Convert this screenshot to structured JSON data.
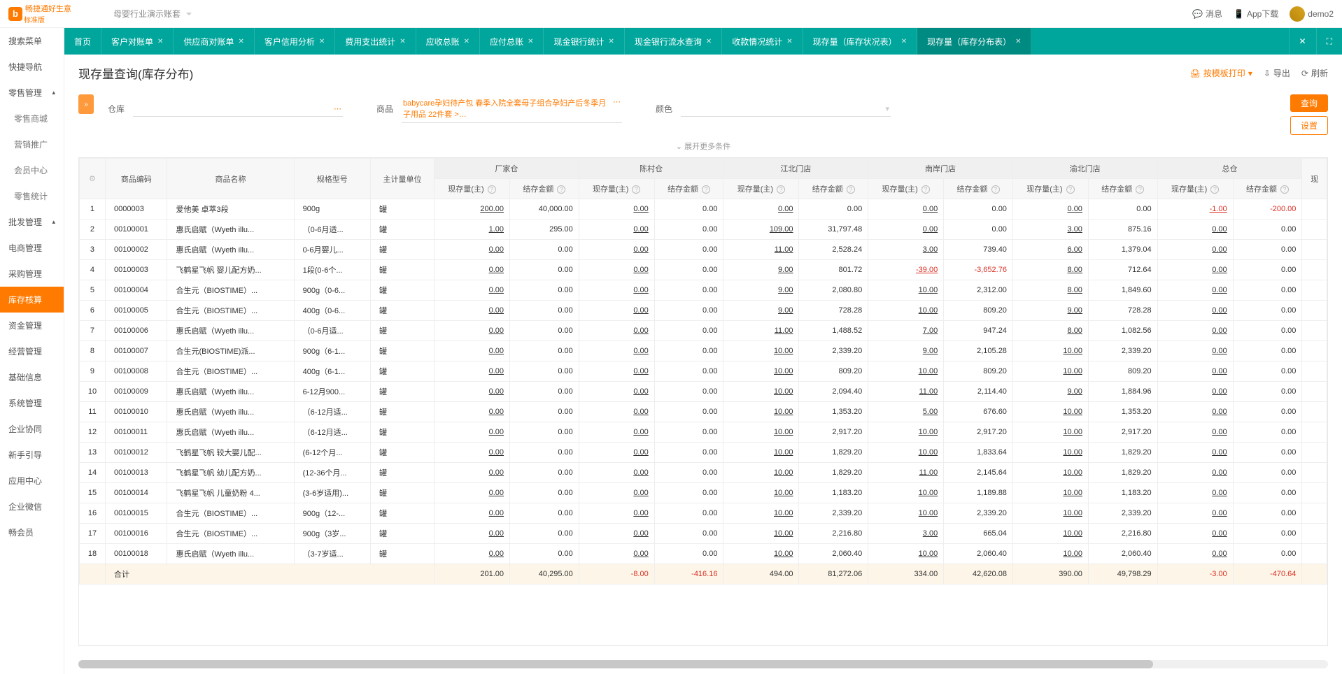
{
  "header": {
    "logo_text": "畅捷通好生意",
    "logo_sub": "标准版",
    "org_dropdown": "母婴行业演示账套",
    "links": {
      "message": "消息",
      "app": "App下载",
      "user": "demo2"
    }
  },
  "sidebar": [
    {
      "label": "搜索菜单",
      "type": "item"
    },
    {
      "label": "快捷导航",
      "type": "item"
    },
    {
      "label": "零售管理",
      "type": "section",
      "expanded": true
    },
    {
      "label": "零售商城",
      "type": "sub"
    },
    {
      "label": "营销推广",
      "type": "sub"
    },
    {
      "label": "会员中心",
      "type": "sub"
    },
    {
      "label": "零售统计",
      "type": "sub"
    },
    {
      "label": "批发管理",
      "type": "section",
      "expanded": true
    },
    {
      "label": "电商管理",
      "type": "item"
    },
    {
      "label": "采购管理",
      "type": "item"
    },
    {
      "label": "库存核算",
      "type": "item",
      "active": true
    },
    {
      "label": "资金管理",
      "type": "item"
    },
    {
      "label": "经营管理",
      "type": "item"
    },
    {
      "label": "基础信息",
      "type": "item"
    },
    {
      "label": "系统管理",
      "type": "item"
    },
    {
      "label": "企业协同",
      "type": "item"
    },
    {
      "label": "新手引导",
      "type": "item"
    },
    {
      "label": "应用中心",
      "type": "item"
    },
    {
      "label": "企业微信",
      "type": "item"
    },
    {
      "label": "畅会员",
      "type": "item"
    }
  ],
  "tabs": {
    "items": [
      {
        "label": "首页",
        "closable": false
      },
      {
        "label": "客户对账单",
        "closable": true
      },
      {
        "label": "供应商对账单",
        "closable": true
      },
      {
        "label": "客户信用分析",
        "closable": true
      },
      {
        "label": "费用支出统计",
        "closable": true
      },
      {
        "label": "应收总账",
        "closable": true
      },
      {
        "label": "应付总账",
        "closable": true
      },
      {
        "label": "现金银行统计",
        "closable": true
      },
      {
        "label": "现金银行流水查询",
        "closable": true
      },
      {
        "label": "收款情况统计",
        "closable": true
      },
      {
        "label": "现存量（库存状况表）",
        "closable": true
      },
      {
        "label": "现存量（库存分布表）",
        "closable": true,
        "active": true
      }
    ]
  },
  "page": {
    "title": "现存量查询(库存分布)",
    "actions": {
      "print": "按模板打印",
      "export": "导出",
      "refresh": "刷新"
    },
    "filters": {
      "warehouse_label": "仓库",
      "warehouse_value": "",
      "product_label": "商品",
      "product_value": "babycare孕妇待产包 春季入院全套母子组合孕妇产后冬季月子用品 22件套 >…",
      "color_label": "颜色",
      "color_value": "",
      "query_btn": "查询",
      "settings_btn": "设置"
    },
    "expand_more": "展开更多条件"
  },
  "table": {
    "fixed_headers": [
      "商品编码",
      "商品名称",
      "规格型号",
      "主计量单位"
    ],
    "group_headers": [
      "厂家仓",
      "陈村仓",
      "江北门店",
      "南岸门店",
      "渝北门店",
      "总仓"
    ],
    "sub_headers": [
      "现存量(主)",
      "结存金额"
    ],
    "colors": {
      "header_bg": "#f7f7f7",
      "group_bg": "#f0f0f0",
      "border": "#eee",
      "neg": "#d93025",
      "total_bg": "#fdf6e8",
      "link": "#333"
    },
    "rows": [
      {
        "n": 1,
        "code": "0000003",
        "name": "爱他美 卓萃3段",
        "spec": "900g",
        "unit": "罐",
        "cells": [
          [
            "200.00",
            "40,000.00"
          ],
          [
            "0.00",
            "0.00"
          ],
          [
            "0.00",
            "0.00"
          ],
          [
            "0.00",
            "0.00"
          ],
          [
            "0.00",
            "0.00"
          ],
          [
            "-1.00",
            "-200.00",
            true
          ]
        ]
      },
      {
        "n": 2,
        "code": "00100001",
        "name": "惠氏启赋（Wyeth illu...",
        "spec": "（0-6月适...",
        "unit": "罐",
        "cells": [
          [
            "1.00",
            "295.00"
          ],
          [
            "0.00",
            "0.00"
          ],
          [
            "109.00",
            "31,797.48"
          ],
          [
            "0.00",
            "0.00"
          ],
          [
            "3.00",
            "875.16"
          ],
          [
            "0.00",
            "0.00"
          ]
        ]
      },
      {
        "n": 3,
        "code": "00100002",
        "name": "惠氏启赋（Wyeth illu...",
        "spec": "0-6月婴儿...",
        "unit": "罐",
        "cells": [
          [
            "0.00",
            "0.00"
          ],
          [
            "0.00",
            "0.00"
          ],
          [
            "11.00",
            "2,528.24"
          ],
          [
            "3.00",
            "739.40"
          ],
          [
            "6.00",
            "1,379.04"
          ],
          [
            "0.00",
            "0.00"
          ]
        ]
      },
      {
        "n": 4,
        "code": "00100003",
        "name": "飞鹤星飞帆 婴儿配方奶...",
        "spec": "1段(0-6个...",
        "unit": "罐",
        "cells": [
          [
            "0.00",
            "0.00"
          ],
          [
            "0.00",
            "0.00"
          ],
          [
            "9.00",
            "801.72"
          ],
          [
            "-39.00",
            "-3,652.76",
            true
          ],
          [
            "8.00",
            "712.64"
          ],
          [
            "0.00",
            "0.00"
          ]
        ]
      },
      {
        "n": 5,
        "code": "00100004",
        "name": "合生元（BIOSTIME）...",
        "spec": "900g（0-6...",
        "unit": "罐",
        "cells": [
          [
            "0.00",
            "0.00"
          ],
          [
            "0.00",
            "0.00"
          ],
          [
            "9.00",
            "2,080.80"
          ],
          [
            "10.00",
            "2,312.00"
          ],
          [
            "8.00",
            "1,849.60"
          ],
          [
            "0.00",
            "0.00"
          ]
        ]
      },
      {
        "n": 6,
        "code": "00100005",
        "name": "合生元（BIOSTIME）...",
        "spec": "400g（0-6...",
        "unit": "罐",
        "cells": [
          [
            "0.00",
            "0.00"
          ],
          [
            "0.00",
            "0.00"
          ],
          [
            "9.00",
            "728.28"
          ],
          [
            "10.00",
            "809.20"
          ],
          [
            "9.00",
            "728.28"
          ],
          [
            "0.00",
            "0.00"
          ]
        ]
      },
      {
        "n": 7,
        "code": "00100006",
        "name": "惠氏启赋（Wyeth illu...",
        "spec": "（0-6月适...",
        "unit": "罐",
        "cells": [
          [
            "0.00",
            "0.00"
          ],
          [
            "0.00",
            "0.00"
          ],
          [
            "11.00",
            "1,488.52"
          ],
          [
            "7.00",
            "947.24"
          ],
          [
            "8.00",
            "1,082.56"
          ],
          [
            "0.00",
            "0.00"
          ]
        ]
      },
      {
        "n": 8,
        "code": "00100007",
        "name": "合生元(BIOSTIME)派...",
        "spec": "900g（6-1...",
        "unit": "罐",
        "cells": [
          [
            "0.00",
            "0.00"
          ],
          [
            "0.00",
            "0.00"
          ],
          [
            "10.00",
            "2,339.20"
          ],
          [
            "9.00",
            "2,105.28"
          ],
          [
            "10.00",
            "2,339.20"
          ],
          [
            "0.00",
            "0.00"
          ]
        ]
      },
      {
        "n": 9,
        "code": "00100008",
        "name": "合生元（BIOSTIME）...",
        "spec": "400g（6-1...",
        "unit": "罐",
        "cells": [
          [
            "0.00",
            "0.00"
          ],
          [
            "0.00",
            "0.00"
          ],
          [
            "10.00",
            "809.20"
          ],
          [
            "10.00",
            "809.20"
          ],
          [
            "10.00",
            "809.20"
          ],
          [
            "0.00",
            "0.00"
          ]
        ]
      },
      {
        "n": 10,
        "code": "00100009",
        "name": "惠氏启赋（Wyeth illu...",
        "spec": "6-12月900...",
        "unit": "罐",
        "cells": [
          [
            "0.00",
            "0.00"
          ],
          [
            "0.00",
            "0.00"
          ],
          [
            "10.00",
            "2,094.40"
          ],
          [
            "11.00",
            "2,114.40"
          ],
          [
            "9.00",
            "1,884.96"
          ],
          [
            "0.00",
            "0.00"
          ]
        ]
      },
      {
        "n": 11,
        "code": "00100010",
        "name": "惠氏启赋（Wyeth illu...",
        "spec": "（6-12月适...",
        "unit": "罐",
        "cells": [
          [
            "0.00",
            "0.00"
          ],
          [
            "0.00",
            "0.00"
          ],
          [
            "10.00",
            "1,353.20"
          ],
          [
            "5.00",
            "676.60"
          ],
          [
            "10.00",
            "1,353.20"
          ],
          [
            "0.00",
            "0.00"
          ]
        ]
      },
      {
        "n": 12,
        "code": "00100011",
        "name": "惠氏启赋（Wyeth illu...",
        "spec": "（6-12月适...",
        "unit": "罐",
        "cells": [
          [
            "0.00",
            "0.00"
          ],
          [
            "0.00",
            "0.00"
          ],
          [
            "10.00",
            "2,917.20"
          ],
          [
            "10.00",
            "2,917.20"
          ],
          [
            "10.00",
            "2,917.20"
          ],
          [
            "0.00",
            "0.00"
          ]
        ]
      },
      {
        "n": 13,
        "code": "00100012",
        "name": "飞鹤星飞帆 较大婴儿配...",
        "spec": "(6-12个月...",
        "unit": "罐",
        "cells": [
          [
            "0.00",
            "0.00"
          ],
          [
            "0.00",
            "0.00"
          ],
          [
            "10.00",
            "1,829.20"
          ],
          [
            "10.00",
            "1,833.64"
          ],
          [
            "10.00",
            "1,829.20"
          ],
          [
            "0.00",
            "0.00"
          ]
        ]
      },
      {
        "n": 14,
        "code": "00100013",
        "name": "飞鹤星飞帆 幼儿配方奶...",
        "spec": "(12-36个月...",
        "unit": "罐",
        "cells": [
          [
            "0.00",
            "0.00"
          ],
          [
            "0.00",
            "0.00"
          ],
          [
            "10.00",
            "1,829.20"
          ],
          [
            "11.00",
            "2,145.64"
          ],
          [
            "10.00",
            "1,829.20"
          ],
          [
            "0.00",
            "0.00"
          ]
        ]
      },
      {
        "n": 15,
        "code": "00100014",
        "name": "飞鹤星飞帆 儿童奶粉 4...",
        "spec": "(3-6岁适用)...",
        "unit": "罐",
        "cells": [
          [
            "0.00",
            "0.00"
          ],
          [
            "0.00",
            "0.00"
          ],
          [
            "10.00",
            "1,183.20"
          ],
          [
            "10.00",
            "1,189.88"
          ],
          [
            "10.00",
            "1,183.20"
          ],
          [
            "0.00",
            "0.00"
          ]
        ]
      },
      {
        "n": 16,
        "code": "00100015",
        "name": "合生元（BIOSTIME）...",
        "spec": "900g（12-...",
        "unit": "罐",
        "cells": [
          [
            "0.00",
            "0.00"
          ],
          [
            "0.00",
            "0.00"
          ],
          [
            "10.00",
            "2,339.20"
          ],
          [
            "10.00",
            "2,339.20"
          ],
          [
            "10.00",
            "2,339.20"
          ],
          [
            "0.00",
            "0.00"
          ]
        ]
      },
      {
        "n": 17,
        "code": "00100016",
        "name": "合生元（BIOSTIME）...",
        "spec": "900g（3岁...",
        "unit": "罐",
        "cells": [
          [
            "0.00",
            "0.00"
          ],
          [
            "0.00",
            "0.00"
          ],
          [
            "10.00",
            "2,216.80"
          ],
          [
            "3.00",
            "665.04"
          ],
          [
            "10.00",
            "2,216.80"
          ],
          [
            "0.00",
            "0.00"
          ]
        ]
      },
      {
        "n": 18,
        "code": "00100018",
        "name": "惠氏启赋（Wyeth illu...",
        "spec": "（3-7岁适...",
        "unit": "罐",
        "cells": [
          [
            "0.00",
            "0.00"
          ],
          [
            "0.00",
            "0.00"
          ],
          [
            "10.00",
            "2,060.40"
          ],
          [
            "10.00",
            "2,060.40"
          ],
          [
            "10.00",
            "2,060.40"
          ],
          [
            "0.00",
            "0.00"
          ]
        ]
      }
    ],
    "total": {
      "label": "合计",
      "cells": [
        [
          "201.00",
          "40,295.00"
        ],
        [
          "-8.00",
          "-416.16",
          true
        ],
        [
          "494.00",
          "81,272.06"
        ],
        [
          "334.00",
          "42,620.08"
        ],
        [
          "390.00",
          "49,798.29"
        ],
        [
          "-3.00",
          "-470.64",
          true
        ]
      ]
    }
  }
}
